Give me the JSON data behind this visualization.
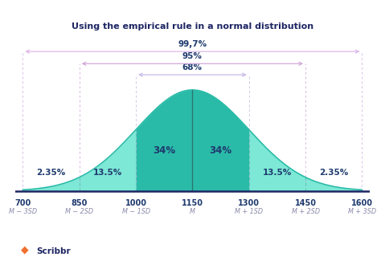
{
  "title": "Using the empirical rule in a normal distribution",
  "title_color": "#1e2663",
  "mean": 1150,
  "sd": 150,
  "x_min": 700,
  "x_max": 1600,
  "tick_values": [
    700,
    850,
    1000,
    1150,
    1300,
    1450,
    1600
  ],
  "tick_labels_top": [
    "700",
    "850",
    "1000",
    "1150",
    "1300",
    "1450",
    "1600"
  ],
  "tick_labels_bottom": [
    "M − 3SD",
    "M − 2SD",
    "M − 1SD",
    "M",
    "M + 1SD",
    "M + 2SD",
    "M + 3SD"
  ],
  "pct_labels": [
    "2.35%",
    "13.5%",
    "34%",
    "34%",
    "13.5%",
    "2.35%"
  ],
  "pct_positions": [
    775,
    925,
    1075,
    1225,
    1375,
    1525
  ],
  "bracket_68_pct": "68%",
  "bracket_95_pct": "95%",
  "bracket_997_pct": "99,7%",
  "color_outer": "#7de8d6",
  "color_inner": "#2abba8",
  "bg_color": "#ffffff",
  "bracket_color_68": "#c8b8e8",
  "bracket_color_95": "#d0a8d8",
  "bracket_color_997": "#ddb8e8",
  "dashed_line_color": "#2abba8",
  "axis_line_color": "#1e2663",
  "text_color_pct": "#1e3a6e",
  "text_color_bracket": "#1e3a6e",
  "text_color_tick_num": "#1e3a6e",
  "text_color_tick_sd": "#8888aa",
  "scribbr_color": "#1e2663",
  "scribbr_icon_color": "#f07030"
}
